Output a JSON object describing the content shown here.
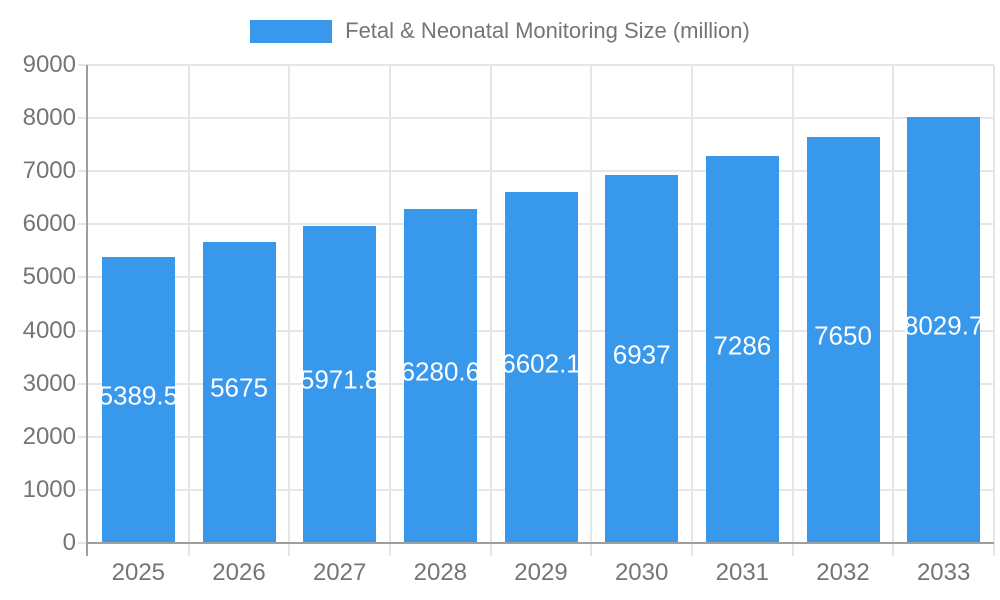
{
  "chart_data": {
    "type": "bar",
    "title": "",
    "legend_label": "Fetal & Neonatal Monitoring Size (million)",
    "legend_position": "top",
    "categories": [
      "2025",
      "2026",
      "2027",
      "2028",
      "2029",
      "2030",
      "2031",
      "2032",
      "2033"
    ],
    "series": [
      {
        "name": "Fetal & Neonatal Monitoring Size (million)",
        "values": [
          5389.5,
          5675,
          5971.8,
          6280.6,
          6602.1,
          6937,
          7286,
          7650,
          8029.7
        ]
      }
    ],
    "value_labels": [
      "5389.5",
      "5675",
      "5971.8",
      "6280.6",
      "6602.1",
      "6937",
      "7286",
      "7650",
      "8029.7"
    ],
    "xlabel": "",
    "ylabel": "",
    "ylim": [
      0,
      9000
    ],
    "ytick_step": 1000,
    "yticks": [
      0,
      1000,
      2000,
      3000,
      4000,
      5000,
      6000,
      7000,
      8000,
      9000
    ],
    "grid": true
  },
  "colors": {
    "bar": "#3898EC",
    "axis_line": "#9E9E9E",
    "gridline": "#E6E6E6",
    "tick_label": "#757575",
    "bar_label": "#FFFFFF",
    "background": "#FFFFFF"
  }
}
